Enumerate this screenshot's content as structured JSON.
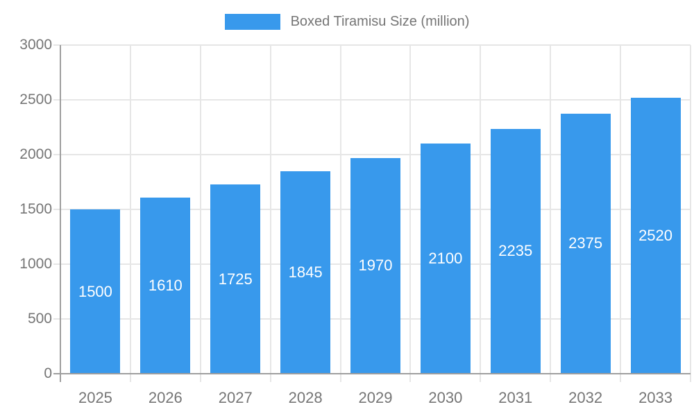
{
  "chart_data": {
    "type": "bar",
    "title": "Boxed Tiramisu Size (million)",
    "legend_entries": [
      "Boxed Tiramisu Size (million)"
    ],
    "legend_position": "top-center",
    "categories": [
      "2025",
      "2026",
      "2027",
      "2028",
      "2029",
      "2030",
      "2031",
      "2032",
      "2033"
    ],
    "values": [
      1500,
      1610,
      1725,
      1845,
      1970,
      2100,
      2235,
      2375,
      2520
    ],
    "xlabel": "",
    "ylabel": "",
    "ylim": [
      0,
      3000
    ],
    "yticks": [
      0,
      500,
      1000,
      1500,
      2000,
      2500,
      3000
    ],
    "grid": true,
    "bar_value_labels_shown": true
  },
  "colors": {
    "bar": "#3899EC",
    "bar_label": "#FFFFFF",
    "axis_text": "#757575",
    "legend_text": "#757575",
    "gridline": "#E6E6E6",
    "axis_line": "#9E9E9E",
    "background": "#FFFFFF"
  }
}
